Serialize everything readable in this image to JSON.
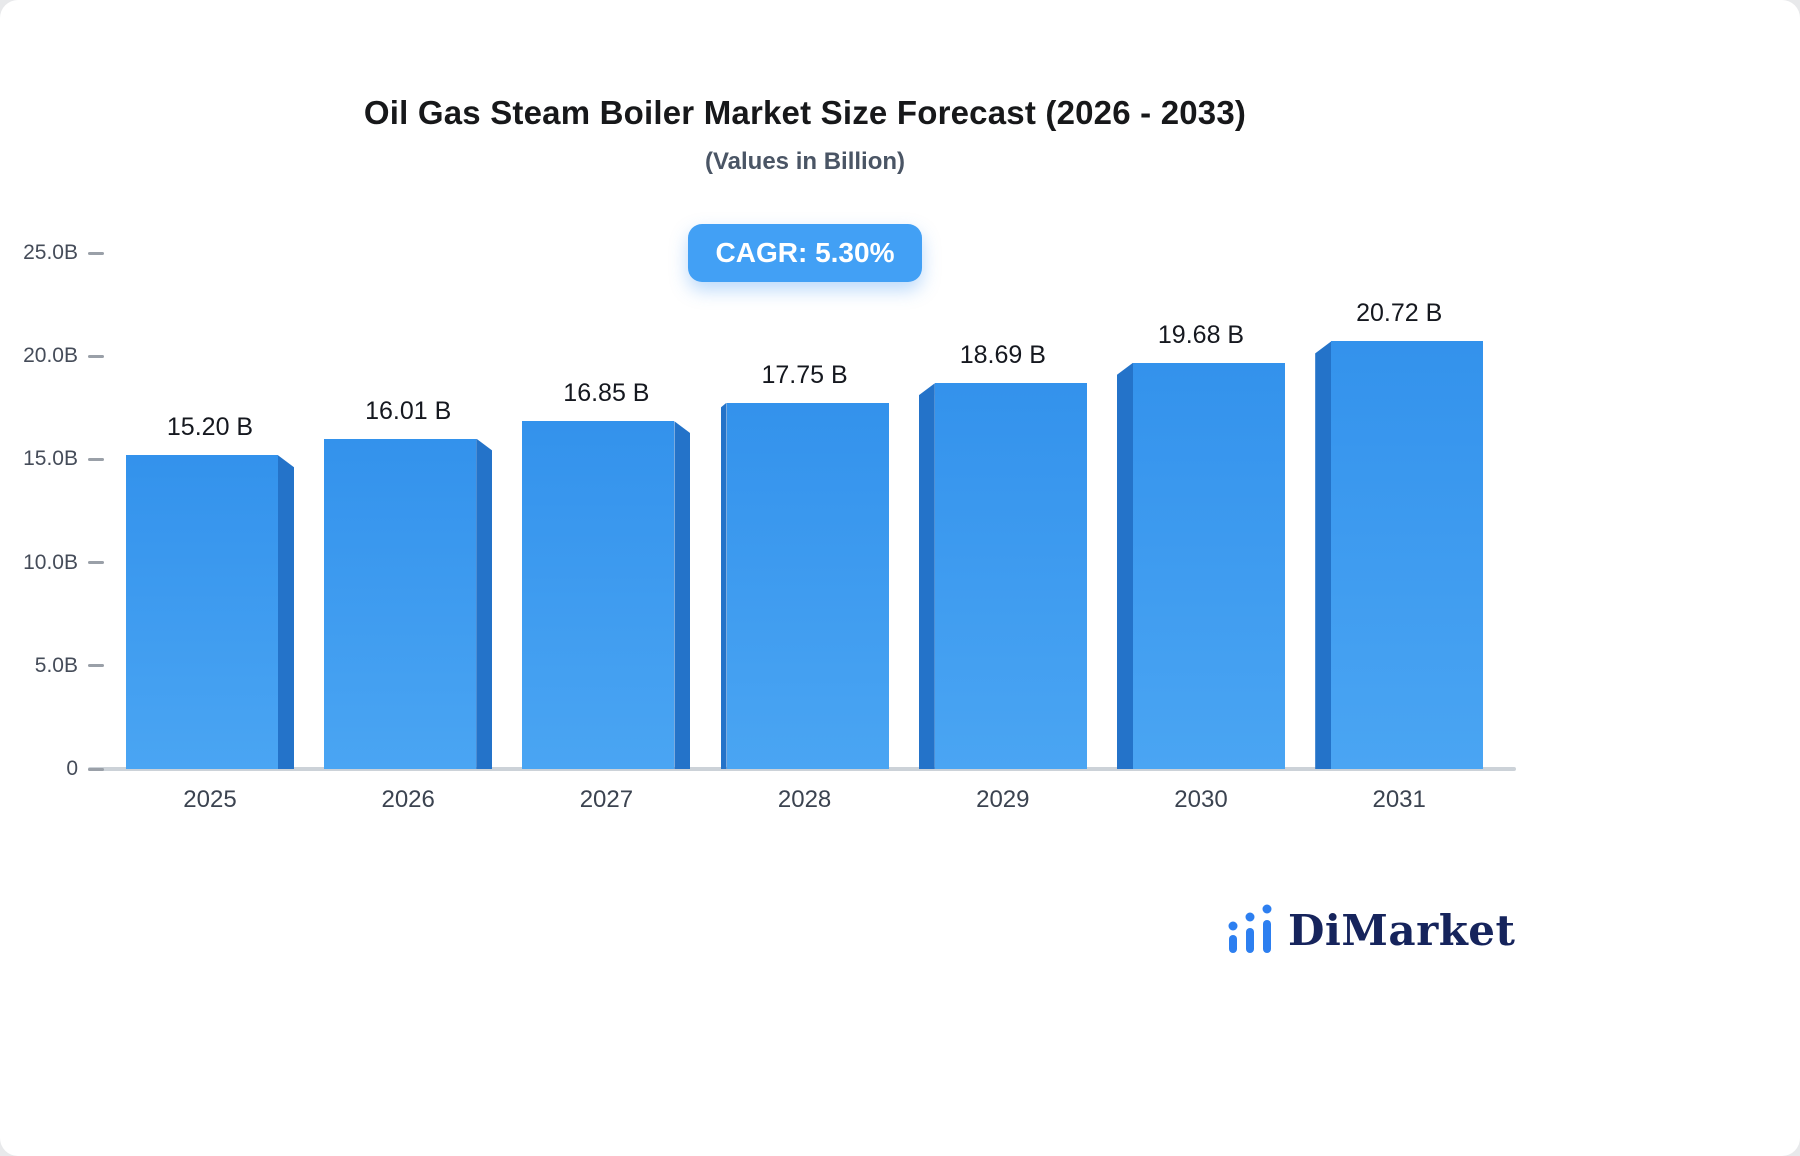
{
  "title": "Oil Gas Steam Boiler Market Size Forecast (2026 - 2033)",
  "subtitle": "(Values in Billion)",
  "cagr_badge": "CAGR: 5.30%",
  "logo": {
    "text": "DiMarket",
    "icon": "bar-chart-icon"
  },
  "colors": {
    "bar_face_top": "#3392ec",
    "bar_face_bottom": "#4aa5f3",
    "bar_side": "#2473c9",
    "badge_bg": "#42a0f5",
    "axis_line": "#ccd2d8",
    "title_text": "#17181a",
    "subtitle_text": "#4a5565",
    "logo_text": "#16245c",
    "logo_icon": "#2d7ff0"
  },
  "chart_data": {
    "type": "bar",
    "categories": [
      "2025",
      "2026",
      "2027",
      "2028",
      "2029",
      "2030",
      "2031"
    ],
    "values": [
      15.2,
      16.01,
      16.85,
      17.75,
      18.69,
      19.68,
      20.72
    ],
    "value_labels": [
      "15.20 B",
      "16.01 B",
      "16.85 B",
      "17.75 B",
      "18.69 B",
      "19.68 B",
      "20.72 B"
    ],
    "title": "Oil Gas Steam Boiler Market Size Forecast (2026 - 2033)",
    "subtitle": "(Values in Billion)",
    "annotation": "CAGR: 5.30%",
    "xlabel": "",
    "ylabel": "",
    "ylim": [
      0,
      25
    ],
    "yticks": [
      0,
      5,
      10,
      15,
      20,
      25
    ],
    "ytick_labels": [
      "0",
      "5.0B",
      "10.0B",
      "15.0B",
      "20.0B",
      "25.0B"
    ],
    "grid": false,
    "legend": "none",
    "bar_style": "3d-side-shaded"
  }
}
